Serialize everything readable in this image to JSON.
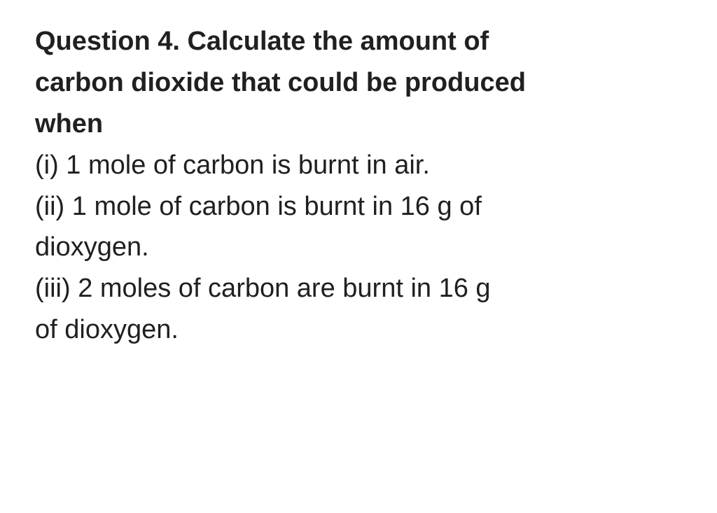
{
  "question": {
    "label": "Question 4. ",
    "heading_line1": "Calculate the amount of",
    "heading_line2": "carbon dioxide that could be produced",
    "heading_line3": "when"
  },
  "items": {
    "i_line1": "(i) 1 mole of carbon is burnt in air.",
    "ii_line1": "(ii) 1 mole of carbon is burnt in 16 g of",
    "ii_line2": "dioxygen.",
    "iii_line1": "(iii) 2 moles of carbon are burnt in 16 g",
    "iii_line2": "of dioxygen."
  },
  "style": {
    "font_size_pt": 38,
    "font_weight_label": 700,
    "font_weight_body": 500,
    "text_color": "#202020",
    "background_color": "#ffffff",
    "line_height": 1.55
  }
}
